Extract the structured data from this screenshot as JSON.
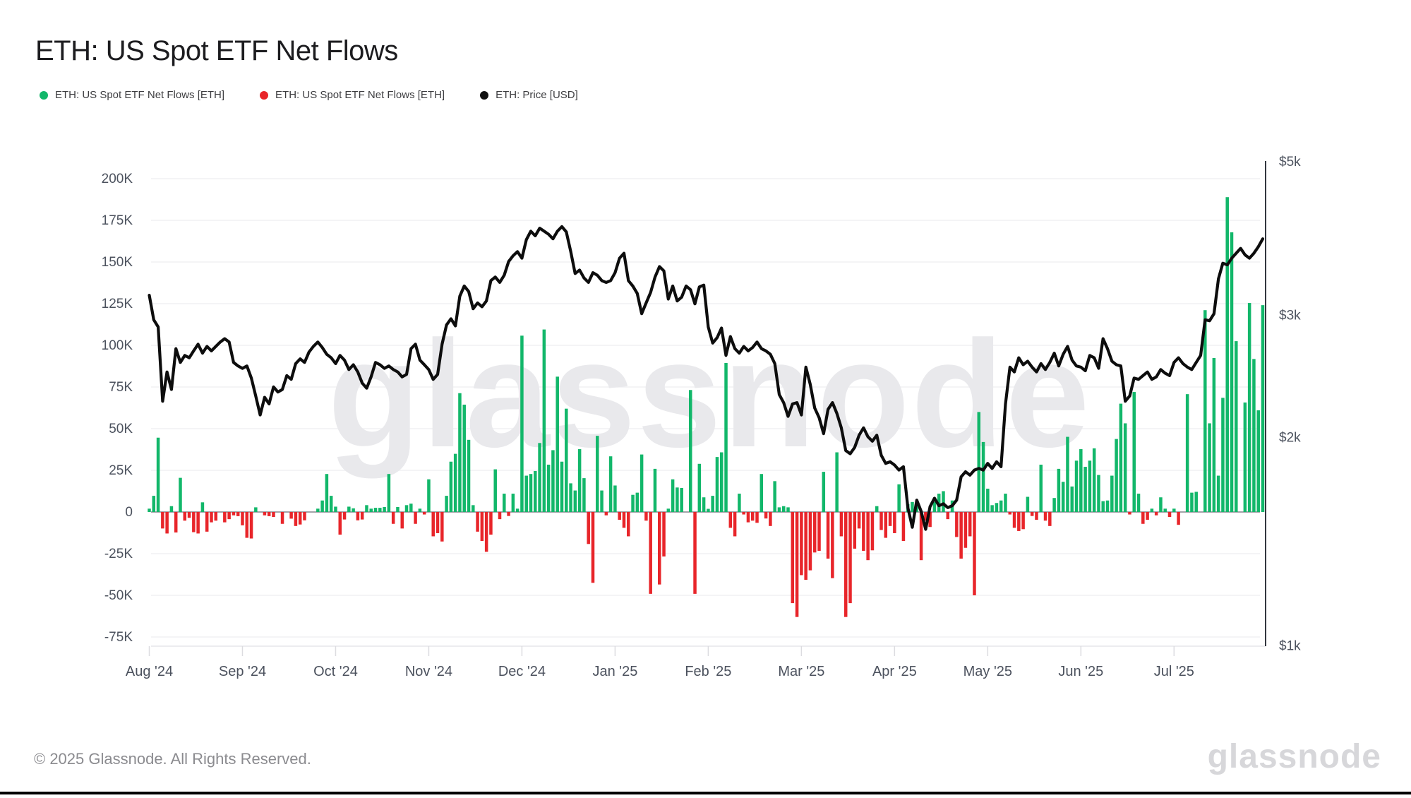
{
  "title": "ETH: US Spot ETF Net Flows",
  "legend": [
    {
      "label": "ETH: US Spot ETF Net Flows [ETH]",
      "color": "#12b76a"
    },
    {
      "label": "ETH: US Spot ETF Net Flows [ETH]",
      "color": "#e8252a"
    },
    {
      "label": "ETH: Price [USD]",
      "color": "#111111"
    }
  ],
  "watermark": "glassnode",
  "footer": {
    "copyright": "© 2025 Glassnode. All Rights Reserved.",
    "brand": "glassnode"
  },
  "chart_data": {
    "type": "bar+line",
    "title": "ETH: US Spot ETF Net Flows",
    "x_description": "Daily trading days, Aug 2024 through Jul 2025 (21 per month)",
    "month_labels": [
      "Aug '24",
      "Sep '24",
      "Oct '24",
      "Nov '24",
      "Dec '24",
      "Jan '25",
      "Feb '25",
      "Mar '25",
      "Apr '25",
      "May '25",
      "Jun '25",
      "Jul '25"
    ],
    "days_per_month": 21,
    "flow_axis": {
      "unit": "thousand ETH",
      "ylim": [
        -75,
        200
      ],
      "tick_step": 25,
      "tick_labels": [
        "200K",
        "175K",
        "150K",
        "125K",
        "100K",
        "75K",
        "50K",
        "25K",
        "0",
        "-25K",
        "-50K",
        "-75K"
      ]
    },
    "price_axis": {
      "unit": "USD",
      "scale": "log",
      "ticks": [
        {
          "label": "$5k",
          "usd": 5000
        },
        {
          "label": "$3k",
          "usd": 3000
        },
        {
          "label": "$2k",
          "usd": 2000
        },
        {
          "label": "$1k",
          "usd": 1000
        }
      ]
    },
    "colors": {
      "inflow": "#12b76a",
      "outflow": "#e8252a",
      "price": "#0d0d0d",
      "grid": "#f0f0f3",
      "zero_line": "#a3a3a9",
      "axis_line": "#33373f",
      "tick_text": "#4c525e",
      "watermark": "#e9e9ec",
      "border": "#e6e6ea"
    },
    "series": [
      {
        "name": "ETH: US Spot ETF Net Flows [ETH]",
        "type": "bar",
        "values_unit": "thousand ETH",
        "values": [
          2,
          9.7,
          44.6,
          -9.9,
          -12.9,
          3.5,
          -12.3,
          20.5,
          -5.2,
          -3.5,
          -12.1,
          -12.9,
          5.8,
          -11.8,
          -6.2,
          -5.2,
          0,
          -6.2,
          -4.3,
          -2.0,
          -2.5,
          -8.0,
          -15.5,
          -15.9,
          2.8,
          0,
          -2.0,
          -2.5,
          -3.0,
          0,
          -7.1,
          0,
          -4.0,
          -8.4,
          -7.5,
          -5.0,
          0,
          0,
          2.0,
          6.9,
          22.8,
          9.7,
          3.2,
          -13.6,
          -4.5,
          3.2,
          2.2,
          -5.0,
          -4.5,
          4.1,
          2.0,
          2.5,
          2.5,
          3.0,
          22.8,
          -7.1,
          3.0,
          -9.9,
          4.1,
          5.0,
          -7.1,
          2.0,
          -1.5,
          19.6,
          -14.6,
          -12.7,
          -17.7,
          9.7,
          30.2,
          34.9,
          71.3,
          64.4,
          43.3,
          4.1,
          -11.8,
          -17.4,
          -23.9,
          -13.6,
          25.6,
          -4.3,
          11.0,
          -2.4,
          11.0,
          2.0,
          105.8,
          21.8,
          22.8,
          24.6,
          41.4,
          109.5,
          28.4,
          37.1,
          81.2,
          30.2,
          62.0,
          17.2,
          12.9,
          37.7,
          20.3,
          -19.2,
          -42.5,
          45.7,
          12.9,
          -2.0,
          33.4,
          15.9,
          -4.7,
          -9.5,
          -14.6,
          10.3,
          11.6,
          34.5,
          -5.2,
          -49.1,
          25.9,
          -43.5,
          -26.7,
          2.0,
          19.6,
          14.7,
          14.4,
          0,
          73.2,
          -49.1,
          28.9,
          8.8,
          1.9,
          9.7,
          33.0,
          35.8,
          89.4,
          -9.5,
          -14.6,
          11.0,
          -1.5,
          -6.2,
          -5.2,
          -6.5,
          22.8,
          -3.9,
          -8.4,
          18.5,
          2.8,
          3.5,
          2.8,
          -54.7,
          -63.0,
          -37.9,
          -40.7,
          -35.0,
          -24.3,
          -23.3,
          24.1,
          -28.0,
          -39.7,
          35.8,
          -14.6,
          -63.0,
          -54.7,
          -22.0,
          -9.9,
          -23.3,
          -28.9,
          -23.0,
          3.5,
          -10.8,
          -15.5,
          -8.4,
          -12.7,
          16.6,
          -17.4,
          4.7,
          6.0,
          6.9,
          -28.9,
          -5.2,
          -9.0,
          6.0,
          11.0,
          12.5,
          -4.3,
          6.9,
          -15.0,
          -28.0,
          -21.5,
          -14.6,
          -50.0,
          60.0,
          42.0,
          14.0,
          4.1,
          5.4,
          6.9,
          11.0,
          -1.5,
          -9.5,
          -11.4,
          -10.3,
          9.1,
          -2.4,
          -4.7,
          28.4,
          -5.2,
          -8.4,
          8.4,
          25.9,
          18.1,
          45.1,
          15.3,
          30.8,
          37.7,
          27.1,
          30.8,
          38.2,
          22.2,
          6.5,
          6.9,
          21.8,
          43.8,
          65.0,
          53.2,
          -1.5,
          72.0,
          11.0,
          -7.1,
          -4.7,
          2.0,
          -2.0,
          8.8,
          2.0,
          -3.0,
          2.0,
          -7.7,
          0,
          70.7,
          11.6,
          12.1,
          0,
          121.1,
          53.2,
          92.4,
          21.8,
          68.5,
          188.9,
          167.8,
          102.5,
          0,
          65.7,
          125.4,
          91.8,
          61.0,
          124.1
        ]
      },
      {
        "name": "ETH: Price [USD]",
        "type": "line",
        "values_unit": "USD",
        "values": [
          3200,
          2950,
          2880,
          2250,
          2480,
          2340,
          2680,
          2560,
          2620,
          2600,
          2660,
          2720,
          2640,
          2700,
          2660,
          2700,
          2740,
          2770,
          2740,
          2560,
          2530,
          2510,
          2530,
          2430,
          2290,
          2150,
          2280,
          2230,
          2360,
          2320,
          2340,
          2450,
          2420,
          2550,
          2590,
          2560,
          2650,
          2700,
          2740,
          2690,
          2630,
          2600,
          2550,
          2620,
          2580,
          2500,
          2540,
          2480,
          2390,
          2350,
          2440,
          2560,
          2540,
          2510,
          2530,
          2500,
          2480,
          2440,
          2460,
          2680,
          2720,
          2580,
          2540,
          2500,
          2420,
          2460,
          2720,
          2900,
          2960,
          2890,
          3190,
          3300,
          3240,
          3060,
          3120,
          3080,
          3140,
          3360,
          3400,
          3340,
          3420,
          3580,
          3650,
          3700,
          3620,
          3850,
          3960,
          3900,
          4000,
          3960,
          3920,
          3860,
          3960,
          4020,
          3950,
          3700,
          3440,
          3480,
          3390,
          3340,
          3450,
          3420,
          3360,
          3340,
          3360,
          3450,
          3620,
          3680,
          3360,
          3300,
          3220,
          3010,
          3120,
          3230,
          3400,
          3520,
          3470,
          3160,
          3300,
          3140,
          3180,
          3300,
          3260,
          3110,
          3290,
          3310,
          2880,
          2730,
          2780,
          2870,
          2620,
          2790,
          2680,
          2640,
          2700,
          2660,
          2690,
          2740,
          2680,
          2660,
          2630,
          2550,
          2300,
          2240,
          2140,
          2230,
          2240,
          2150,
          2520,
          2380,
          2200,
          2130,
          2020,
          2190,
          2240,
          2160,
          2060,
          1910,
          1890,
          1930,
          2010,
          2060,
          2000,
          1970,
          2010,
          1880,
          1830,
          1840,
          1820,
          1790,
          1810,
          1580,
          1480,
          1620,
          1560,
          1470,
          1585,
          1630,
          1590,
          1600,
          1580,
          1590,
          1620,
          1750,
          1780,
          1760,
          1790,
          1800,
          1790,
          1830,
          1800,
          1840,
          1810,
          2230,
          2520,
          2480,
          2600,
          2540,
          2570,
          2520,
          2480,
          2550,
          2500,
          2560,
          2640,
          2530,
          2630,
          2700,
          2580,
          2530,
          2520,
          2490,
          2620,
          2600,
          2510,
          2770,
          2680,
          2570,
          2540,
          2530,
          2250,
          2290,
          2430,
          2420,
          2450,
          2480,
          2420,
          2440,
          2500,
          2470,
          2450,
          2560,
          2600,
          2550,
          2520,
          2500,
          2560,
          2620,
          2950,
          2940,
          3010,
          3380,
          3560,
          3540,
          3620,
          3680,
          3740,
          3660,
          3620,
          3680,
          3760,
          3860
        ]
      }
    ],
    "legend_position": "top-left",
    "grid": "horizontal-only"
  }
}
